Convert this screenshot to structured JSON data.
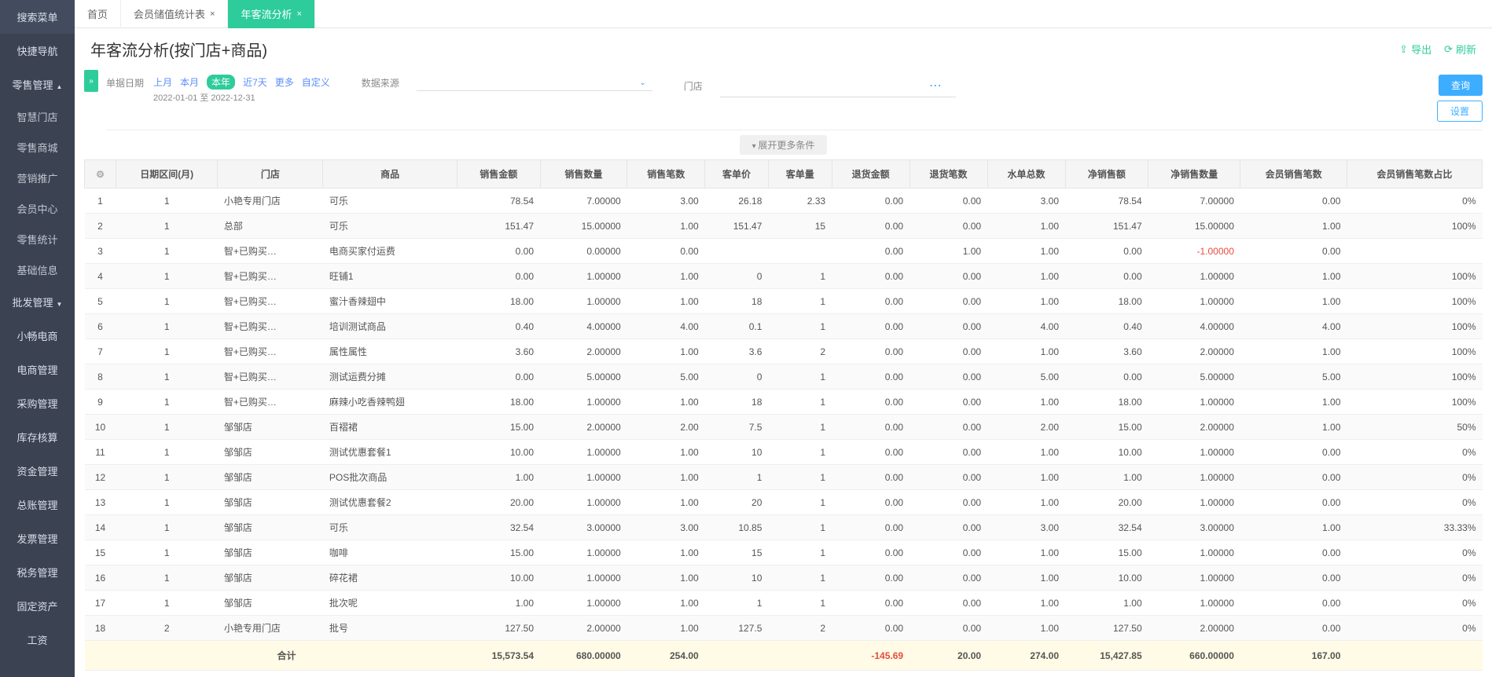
{
  "sidebar": {
    "items": [
      {
        "label": "搜索菜单",
        "type": "item"
      },
      {
        "label": "快捷导航",
        "type": "item"
      },
      {
        "label": "零售管理",
        "type": "expandable"
      },
      {
        "label": "智慧门店",
        "type": "sub"
      },
      {
        "label": "零售商城",
        "type": "sub"
      },
      {
        "label": "营销推广",
        "type": "sub"
      },
      {
        "label": "会员中心",
        "type": "sub"
      },
      {
        "label": "零售统计",
        "type": "sub"
      },
      {
        "label": "基础信息",
        "type": "sub"
      },
      {
        "label": "批发管理",
        "type": "expandable-down"
      },
      {
        "label": "小畅电商",
        "type": "item"
      },
      {
        "label": "电商管理",
        "type": "item"
      },
      {
        "label": "采购管理",
        "type": "item"
      },
      {
        "label": "库存核算",
        "type": "item"
      },
      {
        "label": "资金管理",
        "type": "item"
      },
      {
        "label": "总账管理",
        "type": "item"
      },
      {
        "label": "发票管理",
        "type": "item"
      },
      {
        "label": "税务管理",
        "type": "item"
      },
      {
        "label": "固定资产",
        "type": "item"
      },
      {
        "label": "工资",
        "type": "item"
      }
    ]
  },
  "tabs": [
    {
      "label": "首页",
      "closable": false,
      "active": false
    },
    {
      "label": "会员储值统计表",
      "closable": true,
      "active": false
    },
    {
      "label": "年客流分析",
      "closable": true,
      "active": true
    }
  ],
  "page": {
    "title": "年客流分析(按门店+商品)",
    "export": "导出",
    "refresh": "刷新"
  },
  "filters": {
    "date_label": "单据日期",
    "date_options": [
      "上月",
      "本月",
      "本年",
      "近7天",
      "更多",
      "自定义"
    ],
    "date_active": "本年",
    "date_range": "2022-01-01 至 2022-12-31",
    "src_label": "数据来源",
    "store_label": "门店",
    "query_btn": "查询",
    "settings_btn": "设置",
    "expand_btn": "展开更多条件"
  },
  "table": {
    "columns": [
      "",
      "日期区间(月)",
      "门店",
      "商品",
      "销售金额",
      "销售数量",
      "销售笔数",
      "客单价",
      "客单量",
      "退货金额",
      "退货笔数",
      "水单总数",
      "净销售额",
      "净销售数量",
      "会员销售笔数",
      "会员销售笔数占比"
    ],
    "align": [
      "ctr",
      "ctr",
      "txt",
      "txt",
      "num",
      "num",
      "num",
      "num",
      "num",
      "num",
      "num",
      "num",
      "num",
      "num",
      "num",
      "num"
    ],
    "rows": [
      [
        "1",
        "1",
        "小艳专用门店",
        "可乐",
        "78.54",
        "7.00000",
        "3.00",
        "26.18",
        "2.33",
        "0.00",
        "0.00",
        "3.00",
        "78.54",
        "7.00000",
        "0.00",
        "0%"
      ],
      [
        "2",
        "1",
        "总部",
        "可乐",
        "151.47",
        "15.00000",
        "1.00",
        "151.47",
        "15",
        "0.00",
        "0.00",
        "1.00",
        "151.47",
        "15.00000",
        "1.00",
        "100%"
      ],
      [
        "3",
        "1",
        "智+已购买…",
        "电商买家付运费",
        "0.00",
        "0.00000",
        "0.00",
        "",
        "",
        "0.00",
        "1.00",
        "1.00",
        "0.00",
        "-1.00000",
        "0.00",
        ""
      ],
      [
        "4",
        "1",
        "智+已购买…",
        "旺铺1",
        "0.00",
        "1.00000",
        "1.00",
        "0",
        "1",
        "0.00",
        "0.00",
        "1.00",
        "0.00",
        "1.00000",
        "1.00",
        "100%"
      ],
      [
        "5",
        "1",
        "智+已购买…",
        "蜜汁香辣翅中",
        "18.00",
        "1.00000",
        "1.00",
        "18",
        "1",
        "0.00",
        "0.00",
        "1.00",
        "18.00",
        "1.00000",
        "1.00",
        "100%"
      ],
      [
        "6",
        "1",
        "智+已购买…",
        "培训测试商品",
        "0.40",
        "4.00000",
        "4.00",
        "0.1",
        "1",
        "0.00",
        "0.00",
        "4.00",
        "0.40",
        "4.00000",
        "4.00",
        "100%"
      ],
      [
        "7",
        "1",
        "智+已购买…",
        "属性属性",
        "3.60",
        "2.00000",
        "1.00",
        "3.6",
        "2",
        "0.00",
        "0.00",
        "1.00",
        "3.60",
        "2.00000",
        "1.00",
        "100%"
      ],
      [
        "8",
        "1",
        "智+已购买…",
        "测试运费分摊",
        "0.00",
        "5.00000",
        "5.00",
        "0",
        "1",
        "0.00",
        "0.00",
        "5.00",
        "0.00",
        "5.00000",
        "5.00",
        "100%"
      ],
      [
        "9",
        "1",
        "智+已购买…",
        "麻辣小吃香辣鸭翅",
        "18.00",
        "1.00000",
        "1.00",
        "18",
        "1",
        "0.00",
        "0.00",
        "1.00",
        "18.00",
        "1.00000",
        "1.00",
        "100%"
      ],
      [
        "10",
        "1",
        "邹邹店",
        "百褶裙",
        "15.00",
        "2.00000",
        "2.00",
        "7.5",
        "1",
        "0.00",
        "0.00",
        "2.00",
        "15.00",
        "2.00000",
        "1.00",
        "50%"
      ],
      [
        "11",
        "1",
        "邹邹店",
        "测试优惠套餐1",
        "10.00",
        "1.00000",
        "1.00",
        "10",
        "1",
        "0.00",
        "0.00",
        "1.00",
        "10.00",
        "1.00000",
        "0.00",
        "0%"
      ],
      [
        "12",
        "1",
        "邹邹店",
        "POS批次商品",
        "1.00",
        "1.00000",
        "1.00",
        "1",
        "1",
        "0.00",
        "0.00",
        "1.00",
        "1.00",
        "1.00000",
        "0.00",
        "0%"
      ],
      [
        "13",
        "1",
        "邹邹店",
        "测试优惠套餐2",
        "20.00",
        "1.00000",
        "1.00",
        "20",
        "1",
        "0.00",
        "0.00",
        "1.00",
        "20.00",
        "1.00000",
        "0.00",
        "0%"
      ],
      [
        "14",
        "1",
        "邹邹店",
        "可乐",
        "32.54",
        "3.00000",
        "3.00",
        "10.85",
        "1",
        "0.00",
        "0.00",
        "3.00",
        "32.54",
        "3.00000",
        "1.00",
        "33.33%"
      ],
      [
        "15",
        "1",
        "邹邹店",
        "咖啡",
        "15.00",
        "1.00000",
        "1.00",
        "15",
        "1",
        "0.00",
        "0.00",
        "1.00",
        "15.00",
        "1.00000",
        "0.00",
        "0%"
      ],
      [
        "16",
        "1",
        "邹邹店",
        "碎花裙",
        "10.00",
        "1.00000",
        "1.00",
        "10",
        "1",
        "0.00",
        "0.00",
        "1.00",
        "10.00",
        "1.00000",
        "0.00",
        "0%"
      ],
      [
        "17",
        "1",
        "邹邹店",
        "批次呢",
        "1.00",
        "1.00000",
        "1.00",
        "1",
        "1",
        "0.00",
        "0.00",
        "1.00",
        "1.00",
        "1.00000",
        "0.00",
        "0%"
      ],
      [
        "18",
        "2",
        "小艳专用门店",
        "批号",
        "127.50",
        "2.00000",
        "1.00",
        "127.5",
        "2",
        "0.00",
        "0.00",
        "1.00",
        "127.50",
        "2.00000",
        "0.00",
        "0%"
      ]
    ],
    "total_label": "合计",
    "totals": [
      "15,573.54",
      "680.00000",
      "254.00",
      "",
      "",
      "-145.69",
      "20.00",
      "274.00",
      "15,427.85",
      "660.00000",
      "167.00",
      ""
    ]
  },
  "colors": {
    "sidebar_bg": "#3b4252",
    "accent": "#2ecc9b",
    "blue": "#3daeff",
    "negative": "#e74c3c",
    "total_bg": "#fffbe6"
  }
}
